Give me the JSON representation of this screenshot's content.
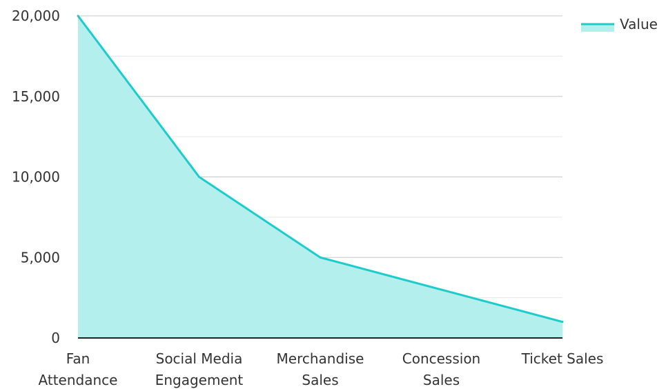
{
  "colors": {
    "line": "#1ecbcb",
    "fill": "#b2efed",
    "grid_major": "#c8c8c8",
    "grid_minor": "#e6e6e6",
    "axis": "#222222",
    "text": "#333333"
  },
  "legend": {
    "label": "Value",
    "position": "top-right"
  },
  "chart_data": {
    "type": "area",
    "title": "",
    "xlabel": "",
    "ylabel": "",
    "categories": [
      [
        "Fan",
        "Attendance"
      ],
      [
        "Social Media",
        "Engagement"
      ],
      [
        "Merchandise",
        "Sales"
      ],
      [
        "Concession",
        "Sales"
      ],
      [
        "Ticket Sales"
      ]
    ],
    "series": [
      {
        "name": "Value",
        "values": [
          20000,
          10000,
          5000,
          3000,
          1000
        ]
      }
    ],
    "ylim": [
      0,
      20000
    ],
    "yticks": [
      0,
      5000,
      10000,
      15000,
      20000
    ],
    "ytick_labels": [
      "0",
      "5,000",
      "10,000",
      "15,000",
      "20,000"
    ],
    "grid": true
  }
}
